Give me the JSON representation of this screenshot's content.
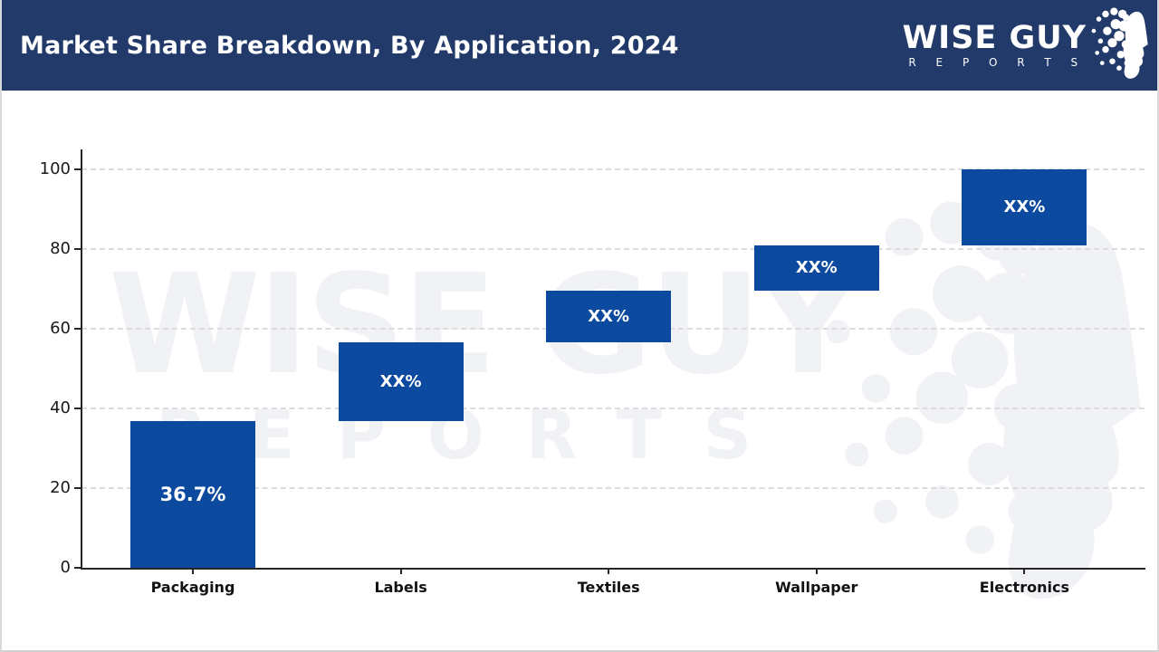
{
  "header": {
    "title": "Market Share Breakdown, By Application, 2024",
    "background_color": "#213a69"
  },
  "logo": {
    "name": "WISE GUY",
    "subtitle": "R E P O R T S"
  },
  "watermark": {
    "line1": "WISE GUY",
    "line2": "REPORTS"
  },
  "chart_data": {
    "type": "bar",
    "subtype": "waterfall",
    "title": "Market Share Breakdown, By Application, 2024",
    "categories": [
      "Packaging",
      "Labels",
      "Textiles",
      "Wallpaper",
      "Electronics"
    ],
    "segments": [
      {
        "category": "Packaging",
        "start": 0,
        "end": 36.7,
        "label": "36.7%"
      },
      {
        "category": "Labels",
        "start": 36.7,
        "end": 56.6,
        "label": "XX%"
      },
      {
        "category": "Textiles",
        "start": 56.6,
        "end": 69.5,
        "label": "XX%"
      },
      {
        "category": "Wallpaper",
        "start": 69.5,
        "end": 80.9,
        "label": "XX%"
      },
      {
        "category": "Electronics",
        "start": 80.9,
        "end": 100,
        "label": "XX%"
      }
    ],
    "yticks": [
      0,
      20,
      40,
      60,
      80,
      100
    ],
    "ylim": [
      0,
      105
    ],
    "xlabel": "",
    "ylabel": "",
    "grid": "horizontal-dashed",
    "legend": "none",
    "bar_color": "#0b4a9f",
    "bar_label_color": "#ffffff",
    "axis_color": "#262626",
    "gridline_color": "#dcdcdc"
  }
}
